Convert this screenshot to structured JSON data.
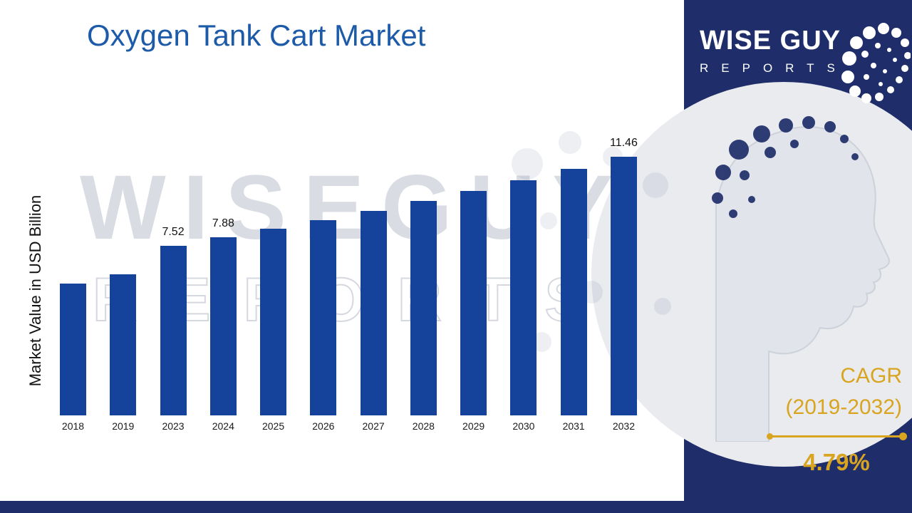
{
  "header": {
    "title": "Oxygen Tank Cart Market"
  },
  "watermark": {
    "line1": "WISEGUY",
    "line2": "REPORTS"
  },
  "logo": {
    "name_top": "WISE GUY",
    "name_bottom": "REPORTS"
  },
  "cagr": {
    "label": "CAGR",
    "range": "(2019-2032)",
    "value": "4.79%"
  },
  "colors": {
    "navy": "#1f2e6a",
    "bar": "#15429b",
    "title": "#1d5ba9",
    "gold": "#d9a521",
    "circle": "#e9ebef",
    "watermark": "#d9dde3"
  },
  "chart_data": {
    "type": "bar",
    "title": "Oxygen Tank Cart Market",
    "xlabel": "",
    "ylabel": "Market Value in USD Billion",
    "categories": [
      "2018",
      "2019",
      "2023",
      "2024",
      "2025",
      "2026",
      "2027",
      "2028",
      "2029",
      "2030",
      "2031",
      "2032"
    ],
    "values": [
      5.85,
      6.24,
      7.52,
      7.88,
      8.26,
      8.65,
      9.07,
      9.5,
      9.96,
      10.43,
      10.93,
      11.46
    ],
    "data_labels": [
      "",
      "",
      "7.52",
      "7.88",
      "",
      "",
      "",
      "",
      "",
      "",
      "",
      "11.46"
    ],
    "ylim": [
      0,
      12
    ],
    "grid": false,
    "legend": false,
    "bar_color": "#15429b"
  }
}
